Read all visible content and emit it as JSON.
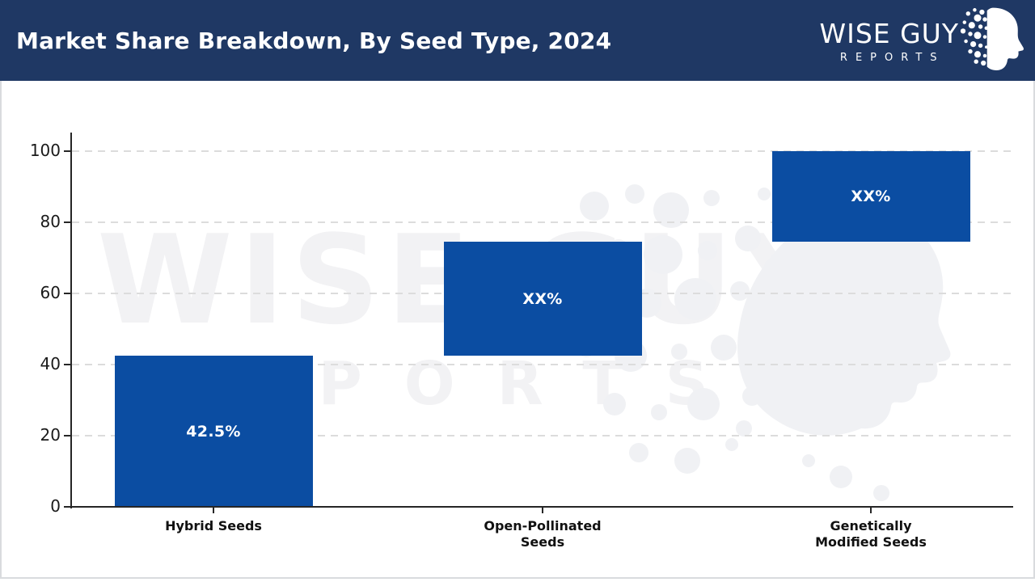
{
  "header": {
    "title": "Market Share Breakdown, By Seed Type, 2024",
    "logo": {
      "brand": "WISE GUY",
      "sub": "REPORTS"
    }
  },
  "watermark": {
    "line1": "WISE GUY",
    "line2": "REPORTS"
  },
  "colors": {
    "header_bg": "#1f3864",
    "page_bg": "#ffffff",
    "bar_blue": "#0b4da2",
    "watermark_gray": "#f2f2f4"
  },
  "chart_data": {
    "type": "bar",
    "subtype": "waterfall",
    "title": "Market Share Breakdown, By Seed Type, 2024",
    "categories": [
      "Hybrid Seeds",
      "Open-Pollinated\nSeeds",
      "Genetically\nModified Seeds"
    ],
    "bars": [
      {
        "category": "Hybrid Seeds",
        "from": 0,
        "to": 42.5,
        "label": "42.5%"
      },
      {
        "category": "Open-Pollinated\nSeeds",
        "from": 42.5,
        "to": 74.5,
        "label": "XX%"
      },
      {
        "category": "Genetically\nModified Seeds",
        "from": 74.5,
        "to": 100,
        "label": "XX%"
      }
    ],
    "xlabel": "",
    "ylabel": "",
    "ylim": [
      0,
      100
    ],
    "yticks": [
      0,
      20,
      40,
      60,
      80,
      100
    ],
    "grid": "horizontal-dashed",
    "legend": "none",
    "bar_color": "#0b4da2",
    "bar_label_color": "#ffffff",
    "axis_color": "#262626",
    "gridline_color": "#dcdcdc"
  }
}
